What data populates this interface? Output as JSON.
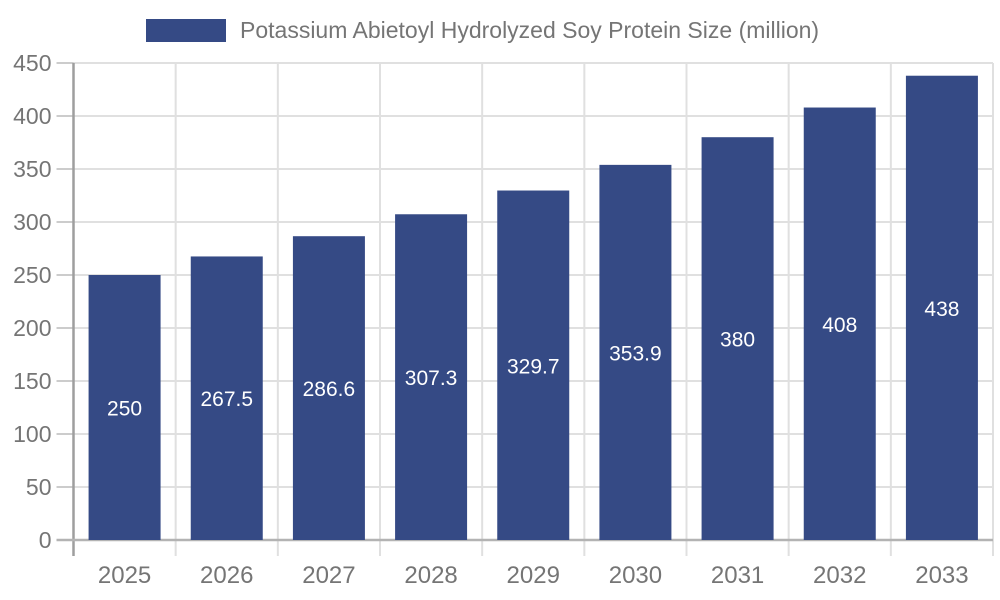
{
  "chart_data": {
    "type": "bar",
    "title": "Potassium Abietoyl Hydrolyzed Soy Protein Size (million)",
    "legend": [
      "Potassium Abietoyl Hydrolyzed Soy Protein Size (million)"
    ],
    "legend_position": "top",
    "categories": [
      "2025",
      "2026",
      "2027",
      "2028",
      "2029",
      "2030",
      "2031",
      "2032",
      "2033"
    ],
    "values": [
      250,
      267.5,
      286.6,
      307.3,
      329.7,
      353.9,
      380,
      408,
      438
    ],
    "value_labels": [
      "250",
      "267.5",
      "286.6",
      "307.3",
      "329.7",
      "353.9",
      "380",
      "408",
      "438"
    ],
    "xlabel": "",
    "ylabel": "",
    "ylim": [
      0,
      450
    ],
    "yticks": [
      0,
      50,
      100,
      150,
      200,
      250,
      300,
      350,
      400,
      450
    ],
    "grid": true,
    "bar_color": "#354A85",
    "value_label_color": "#ffffff",
    "grid_color": "#e0e0e0",
    "axis_color": "#9e9e9e",
    "tick_color": "#cccccc",
    "tick_text_color": "#757575"
  }
}
